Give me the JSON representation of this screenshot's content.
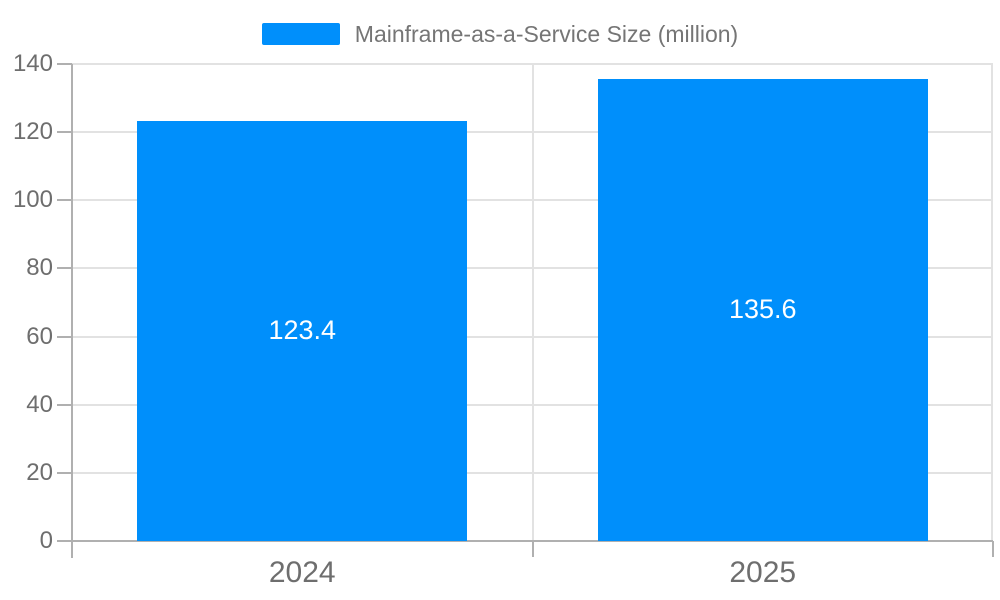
{
  "chart_data": {
    "type": "bar",
    "title": "",
    "categories": [
      "2024",
      "2025"
    ],
    "series": [
      {
        "name": "Mainframe-as-a-Service Size (million)",
        "values": [
          123.4,
          135.6
        ]
      }
    ],
    "data_labels": [
      "123.4",
      "135.6"
    ],
    "xlabel": "",
    "ylabel": "",
    "ylim": [
      0,
      140
    ],
    "yticks": [
      0,
      20,
      40,
      60,
      80,
      100,
      120,
      140
    ],
    "grid": true,
    "legend_position": "top",
    "colors": {
      "bar": "#008ffb",
      "grid": "#e2e2e2",
      "axis": "#b0b0b0",
      "tick_label": "#6e6e6e",
      "legend_text": "#757575",
      "data_label": "#ffffff",
      "background": "#ffffff"
    }
  }
}
